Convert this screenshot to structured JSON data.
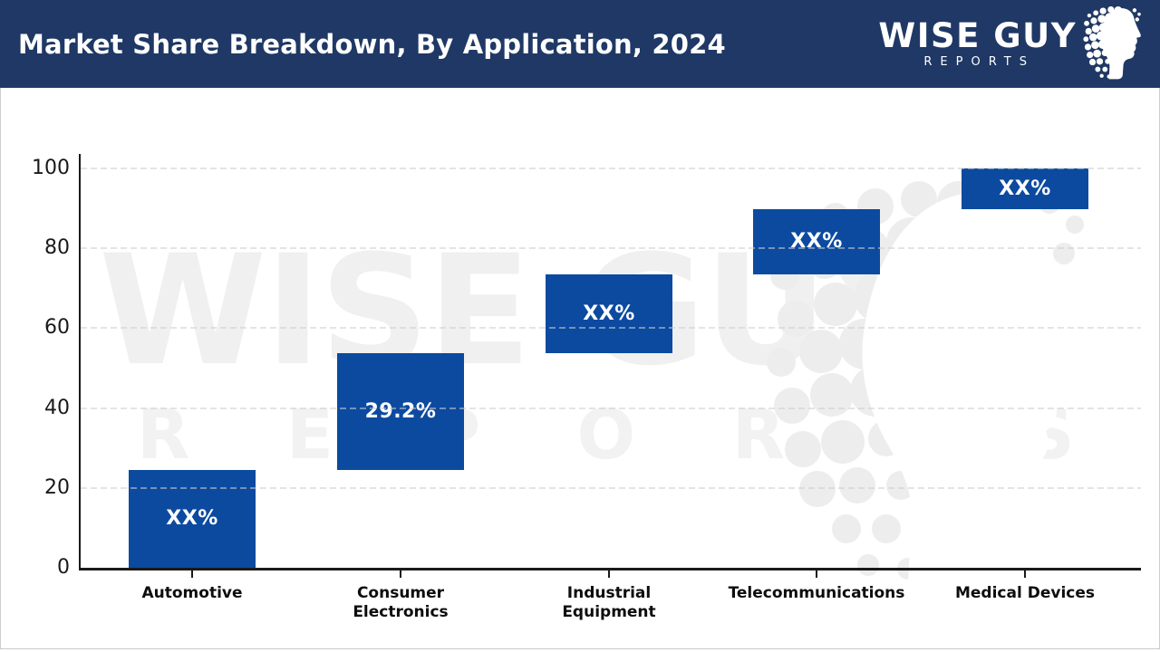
{
  "header": {
    "title": "Market Share Breakdown, By Application, 2024",
    "bg_color": "#1f3865",
    "logo": {
      "line1": "WISE GUY",
      "line2": "REPORTS"
    }
  },
  "watermark": {
    "line1": "WISE GUY",
    "line2": "REPORTS"
  },
  "chart_data": {
    "type": "bar",
    "subtype": "waterfall-segments",
    "title": "Market Share Breakdown, By Application, 2024",
    "categories": [
      "Automotive",
      "Consumer Electronics",
      "Industrial Equipment",
      "Telecommunications",
      "Medical Devices"
    ],
    "segments": [
      {
        "category": "Automotive",
        "lines": [
          "Automotive"
        ],
        "start": 0,
        "end": 24.5,
        "label": "XX%"
      },
      {
        "category": "Consumer Electronics",
        "lines": [
          "Consumer",
          "Electronics"
        ],
        "start": 24.5,
        "end": 53.7,
        "label": "29.2%"
      },
      {
        "category": "Industrial Equipment",
        "lines": [
          "Industrial",
          "Equipment"
        ],
        "start": 53.7,
        "end": 73.5,
        "label": "XX%"
      },
      {
        "category": "Telecommunications",
        "lines": [
          "Telecommunications"
        ],
        "start": 73.5,
        "end": 89.8,
        "label": "XX%"
      },
      {
        "category": "Medical Devices",
        "lines": [
          "Medical Devices"
        ],
        "start": 89.8,
        "end": 100,
        "label": "XX%"
      }
    ],
    "y_ticks": [
      0,
      20,
      40,
      60,
      80,
      100
    ],
    "ylim": [
      0,
      104
    ],
    "grid": "horizontal-dashed",
    "legend": "none",
    "bar_color": "#0c4aa0",
    "bar_label_color": "#ffffff",
    "axis_color": "#1a1a1a",
    "xlabel": "",
    "ylabel": ""
  }
}
